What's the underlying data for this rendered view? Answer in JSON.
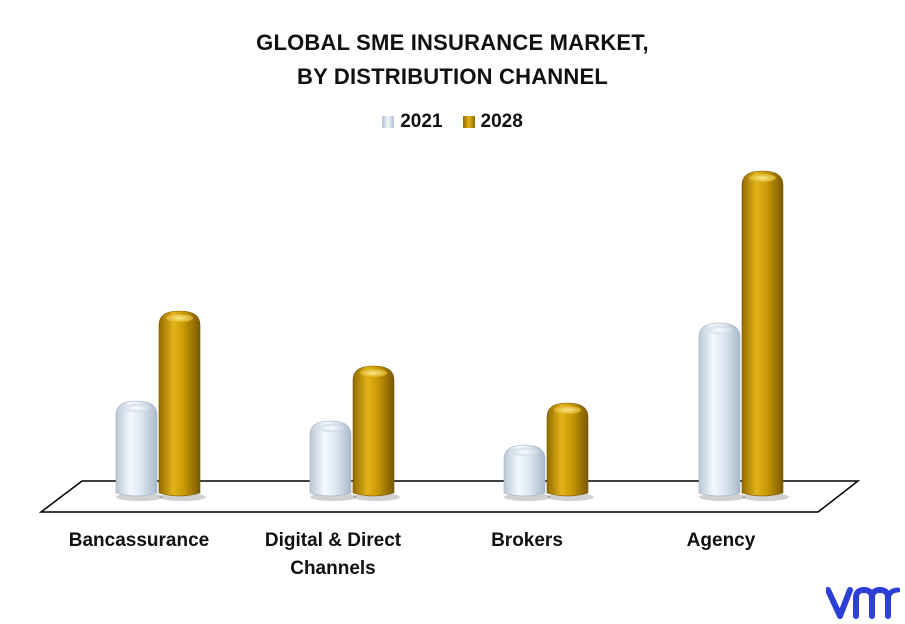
{
  "chart_data": {
    "type": "bar",
    "title_lines": [
      "GLOBAL SME INSURANCE MARKET,",
      "BY DISTRIBUTION CHANNEL"
    ],
    "categories": [
      "Bancassurance",
      "Digital & Direct Channels",
      "Brokers",
      "Agency"
    ],
    "category_label_lines": [
      [
        "Bancassurance"
      ],
      [
        "Digital & Direct",
        "Channels"
      ],
      [
        "Brokers"
      ],
      [
        "Agency"
      ]
    ],
    "series": [
      {
        "name": "2021",
        "values": [
          96,
          76,
          52,
          174
        ]
      },
      {
        "name": "2028",
        "values": [
          186,
          131,
          94,
          326
        ]
      }
    ],
    "ylim": [
      0,
      340
    ],
    "grid": false,
    "legend_position": "top-center",
    "colors": {
      "2021": "#dbe5f0",
      "2028": "#c99a06"
    }
  },
  "legend_icons": {
    "2021": "bar-swatch-icon",
    "2028": "bar-swatch-icon"
  },
  "brand": {
    "logo": "vmr-logo-icon",
    "color": "#2b3fd6"
  }
}
